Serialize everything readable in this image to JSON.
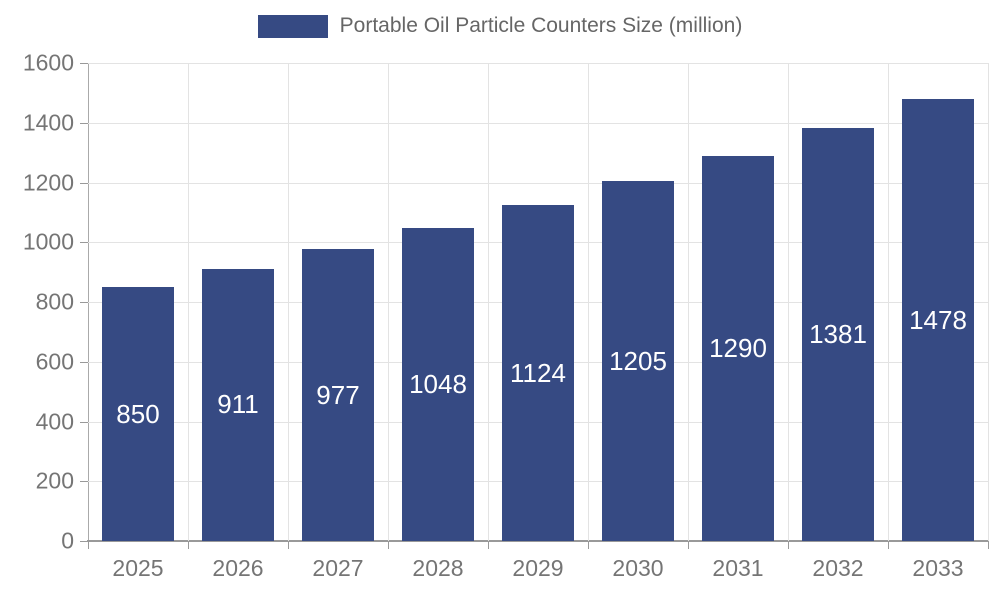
{
  "chart_data": {
    "type": "bar",
    "title": "Portable Oil Particle Counters Size (million)",
    "legend": "Portable Oil Particle Counters Size (million)",
    "legend_position": "top",
    "categories": [
      "2025",
      "2026",
      "2027",
      "2028",
      "2029",
      "2030",
      "2031",
      "2032",
      "2033"
    ],
    "values": [
      850,
      911,
      977,
      1048,
      1124,
      1205,
      1290,
      1381,
      1478
    ],
    "xlabel": "",
    "ylabel": "",
    "ylim": [
      0,
      1600
    ],
    "ytick_step": 200,
    "ytick_labels": [
      "0",
      "200",
      "400",
      "600",
      "800",
      "1000",
      "1200",
      "1400",
      "1600"
    ],
    "grid": true,
    "data_labels": "inside-center",
    "colors": {
      "bar": "#364A83",
      "grid": "#e3e3e3",
      "axis_line": "#999999",
      "tick_label": "#757575",
      "value_label": "#ffffff",
      "legend_text": "#666666",
      "background": "#ffffff"
    }
  }
}
